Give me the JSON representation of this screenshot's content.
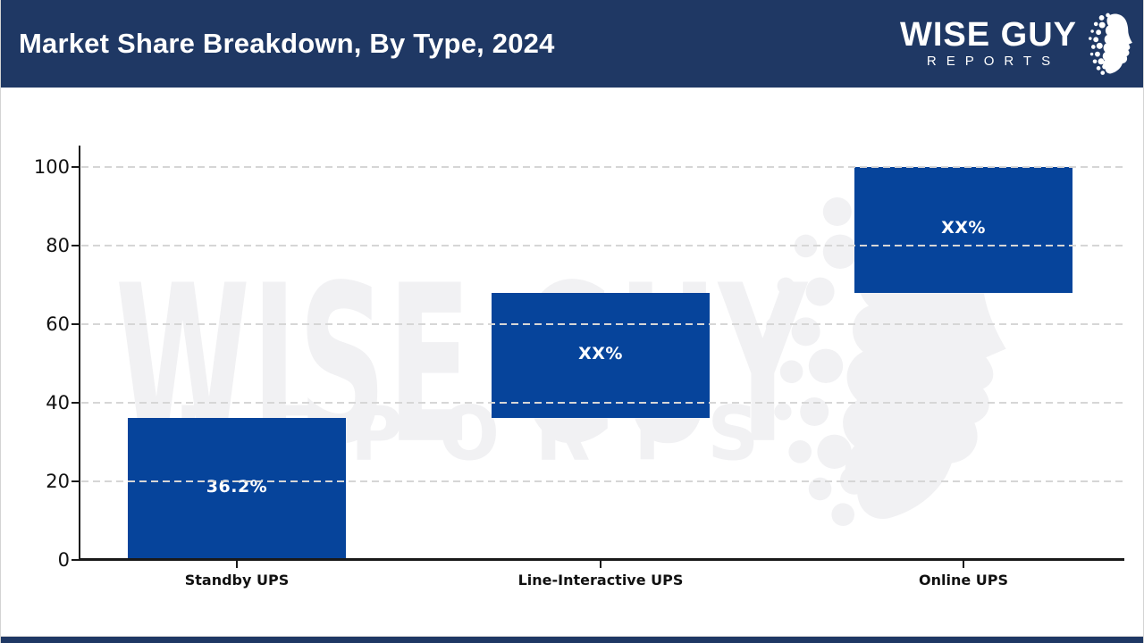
{
  "header": {
    "title": "Market Share Breakdown, By Type, 2024",
    "brand": {
      "line1": "WISE GUY",
      "line2": "REPORTS"
    }
  },
  "watermark": {
    "line1": "WISE GUY",
    "line2": "REPORTS"
  },
  "colors": {
    "header_bg": "#1f3864",
    "bar": "#06449b",
    "bar_label": "#ffffff",
    "gridline": "#d6d6d6",
    "axis": "#1a1a1a",
    "watermark": "#f1f1f3"
  },
  "chart_data": {
    "type": "bar",
    "variant": "floating-cumulative-bars",
    "title": "Market Share Breakdown, By Type, 2024",
    "categories": [
      "Standby UPS",
      "Line-Interactive UPS",
      "Online UPS"
    ],
    "bars": [
      {
        "category": "Standby UPS",
        "start": 0,
        "end": 36.2,
        "label": "36.2%"
      },
      {
        "category": "Line-Interactive UPS",
        "start": 36.2,
        "end": 68,
        "label": "XX%"
      },
      {
        "category": "Online UPS",
        "start": 68,
        "end": 100,
        "label": "XX%"
      }
    ],
    "xlabel": "",
    "ylabel": "",
    "ylim": [
      0,
      100
    ],
    "yticks": [
      0,
      20,
      40,
      60,
      80,
      100
    ],
    "grid": {
      "horizontal": true,
      "style": "dashed",
      "on_top_of_bars": true
    },
    "legend": null,
    "bar_color": "#06449b",
    "label_color": "#ffffff"
  }
}
